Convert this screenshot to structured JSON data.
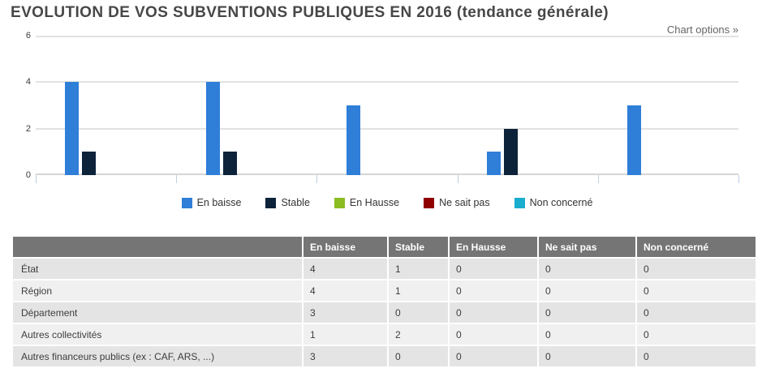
{
  "title": "EVOLUTION DE VOS SUBVENTIONS PUBLIQUES EN 2016 (tendance générale)",
  "chart_options_label": "Chart options »",
  "chart_data": {
    "type": "bar",
    "title": "EVOLUTION DE VOS SUBVENTIONS PUBLIQUES EN 2016 (tendance générale)",
    "categories": [
      "État",
      "Région",
      "Département",
      "Autres collectivités",
      "Autres financeurs publics (ex : CAF, ARS, ...)"
    ],
    "series": [
      {
        "name": "En baisse",
        "color": "#2f7ed8",
        "values": [
          4,
          4,
          3,
          1,
          3
        ]
      },
      {
        "name": "Stable",
        "color": "#0d233a",
        "values": [
          1,
          1,
          0,
          2,
          0
        ]
      },
      {
        "name": "En Hausse",
        "color": "#8bbc21",
        "values": [
          0,
          0,
          0,
          0,
          0
        ]
      },
      {
        "name": "Ne sait pas",
        "color": "#910000",
        "values": [
          0,
          0,
          0,
          0,
          0
        ]
      },
      {
        "name": "Non concerné",
        "color": "#1aadce",
        "values": [
          0,
          0,
          0,
          0,
          0
        ]
      }
    ],
    "ylim": [
      0,
      6
    ],
    "yticks": [
      0,
      2,
      4,
      6
    ],
    "xlabel": "",
    "ylabel": "",
    "grid": true,
    "legend_position": "bottom"
  },
  "table": {
    "columns": [
      "",
      "En baisse",
      "Stable",
      "En Hausse",
      "Ne sait pas",
      "Non concerné"
    ],
    "rows": [
      {
        "label": "État",
        "values": [
          "4",
          "1",
          "0",
          "0",
          "0"
        ]
      },
      {
        "label": "Région",
        "values": [
          "4",
          "1",
          "0",
          "0",
          "0"
        ]
      },
      {
        "label": "Département",
        "values": [
          "3",
          "0",
          "0",
          "0",
          "0"
        ]
      },
      {
        "label": "Autres collectivités",
        "values": [
          "1",
          "2",
          "0",
          "0",
          "0"
        ]
      },
      {
        "label": "Autres financeurs publics (ex : CAF, ARS, ...)",
        "values": [
          "3",
          "0",
          "0",
          "0",
          "0"
        ]
      }
    ]
  },
  "colors": {
    "header_bg": "#757575",
    "row_odd_bg": "#e4e4e4",
    "row_even_bg": "#f0f0f0",
    "gridline": "#e2e2e2",
    "tick": "#c0d0e0"
  }
}
